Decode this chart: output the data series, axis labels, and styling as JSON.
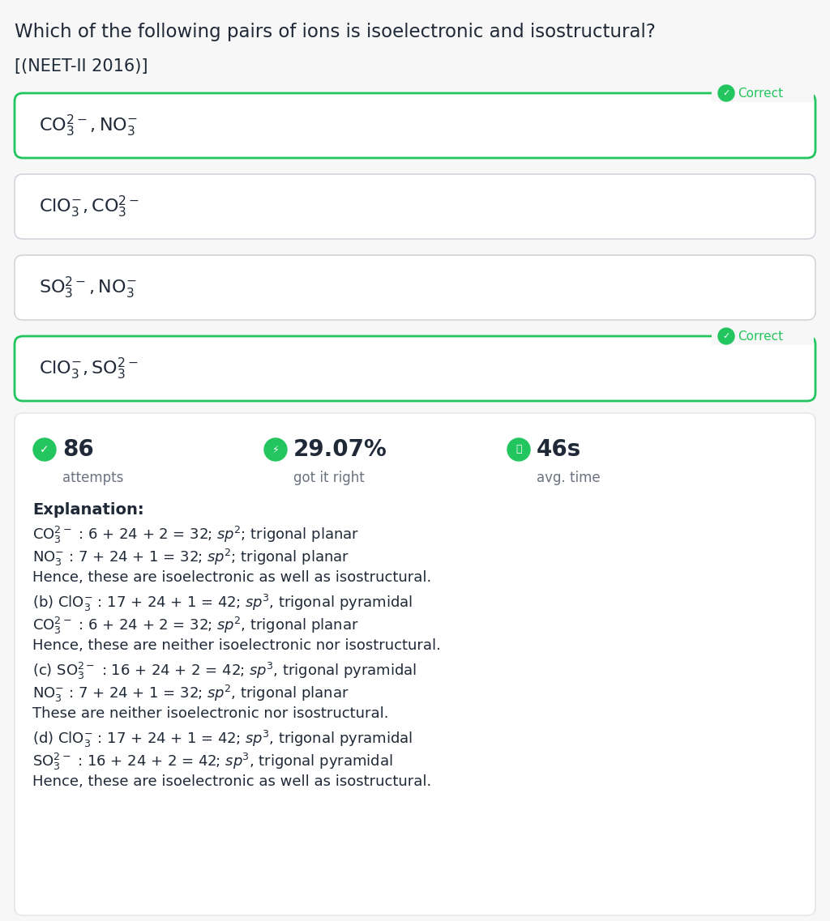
{
  "title": "Which of the following pairs of ions is isoelectronic and isostructural?",
  "subtitle": "[(NEET-II 2016)]",
  "background_color": "#f7f7f7",
  "box_bg": "#ffffff",
  "correct_color": "#22c55e",
  "normal_border": "#d1d5db",
  "correct_label": "Correct",
  "options": [
    {
      "latex": "$\\mathregular{CO_3^{2-}, NO_3^{-}}$",
      "correct": true
    },
    {
      "latex": "$\\mathregular{ClO_3^{-}, CO_3^{2-}}$",
      "correct": false
    },
    {
      "latex": "$\\mathregular{SO_3^{2-}, NO_3^{-}}$",
      "correct": false
    },
    {
      "latex": "$\\mathregular{ClO_3^{-}, SO_3^{2-}}$",
      "correct": true
    }
  ],
  "stats": {
    "attempts": "86",
    "attempts_label": "attempts",
    "percent": "29.07%",
    "percent_label": "got it right",
    "time": "46s",
    "time_label": "avg. time"
  },
  "explanation_title": "Explanation:",
  "expl_lines": [
    "$\\mathregular{CO_3^{2-}}$ : 6 + 24 + 2 = 32; $\\it{sp}$$^2$; trigonal planar",
    "$\\mathregular{NO_3^{-}}$ : 7 + 24 + 1 = 32; $\\it{sp}$$^2$; trigonal planar",
    "Hence, these are isoelectronic as well as isostructural.",
    "(b) $\\mathregular{ClO_3^{-}}$ : 17 + 24 + 1 = 42; $\\it{sp}$$^3$, trigonal pyramidal",
    "$\\mathregular{CO_3^{2-}}$ : 6 + 24 + 2 = 32; $\\it{sp}$$^2$, trigonal planar",
    "Hence, these are neither isoelectronic nor isostructural.",
    "(c) $\\mathregular{SO_3^{2-}}$ : 16 + 24 + 2 = 42; $\\it{sp}$$^3$, trigonal pyramidal",
    "$\\mathregular{NO_3^{-}}$ : 7 + 24 + 1 = 32; $\\it{sp}$$^2$, trigonal planar",
    "These are neither isoelectronic nor isostructural.",
    "(d) $\\mathregular{ClO_3^{-}}$ : 17 + 24 + 1 = 42; $\\it{sp}$$^3$, trigonal pyramidal",
    "$\\mathregular{SO_3^{2-}}$ : 16 + 24 + 2 = 42; $\\it{sp}$$^3$, trigonal pyramidal",
    "Hence, these are isoelectronic as well as isostructural."
  ]
}
